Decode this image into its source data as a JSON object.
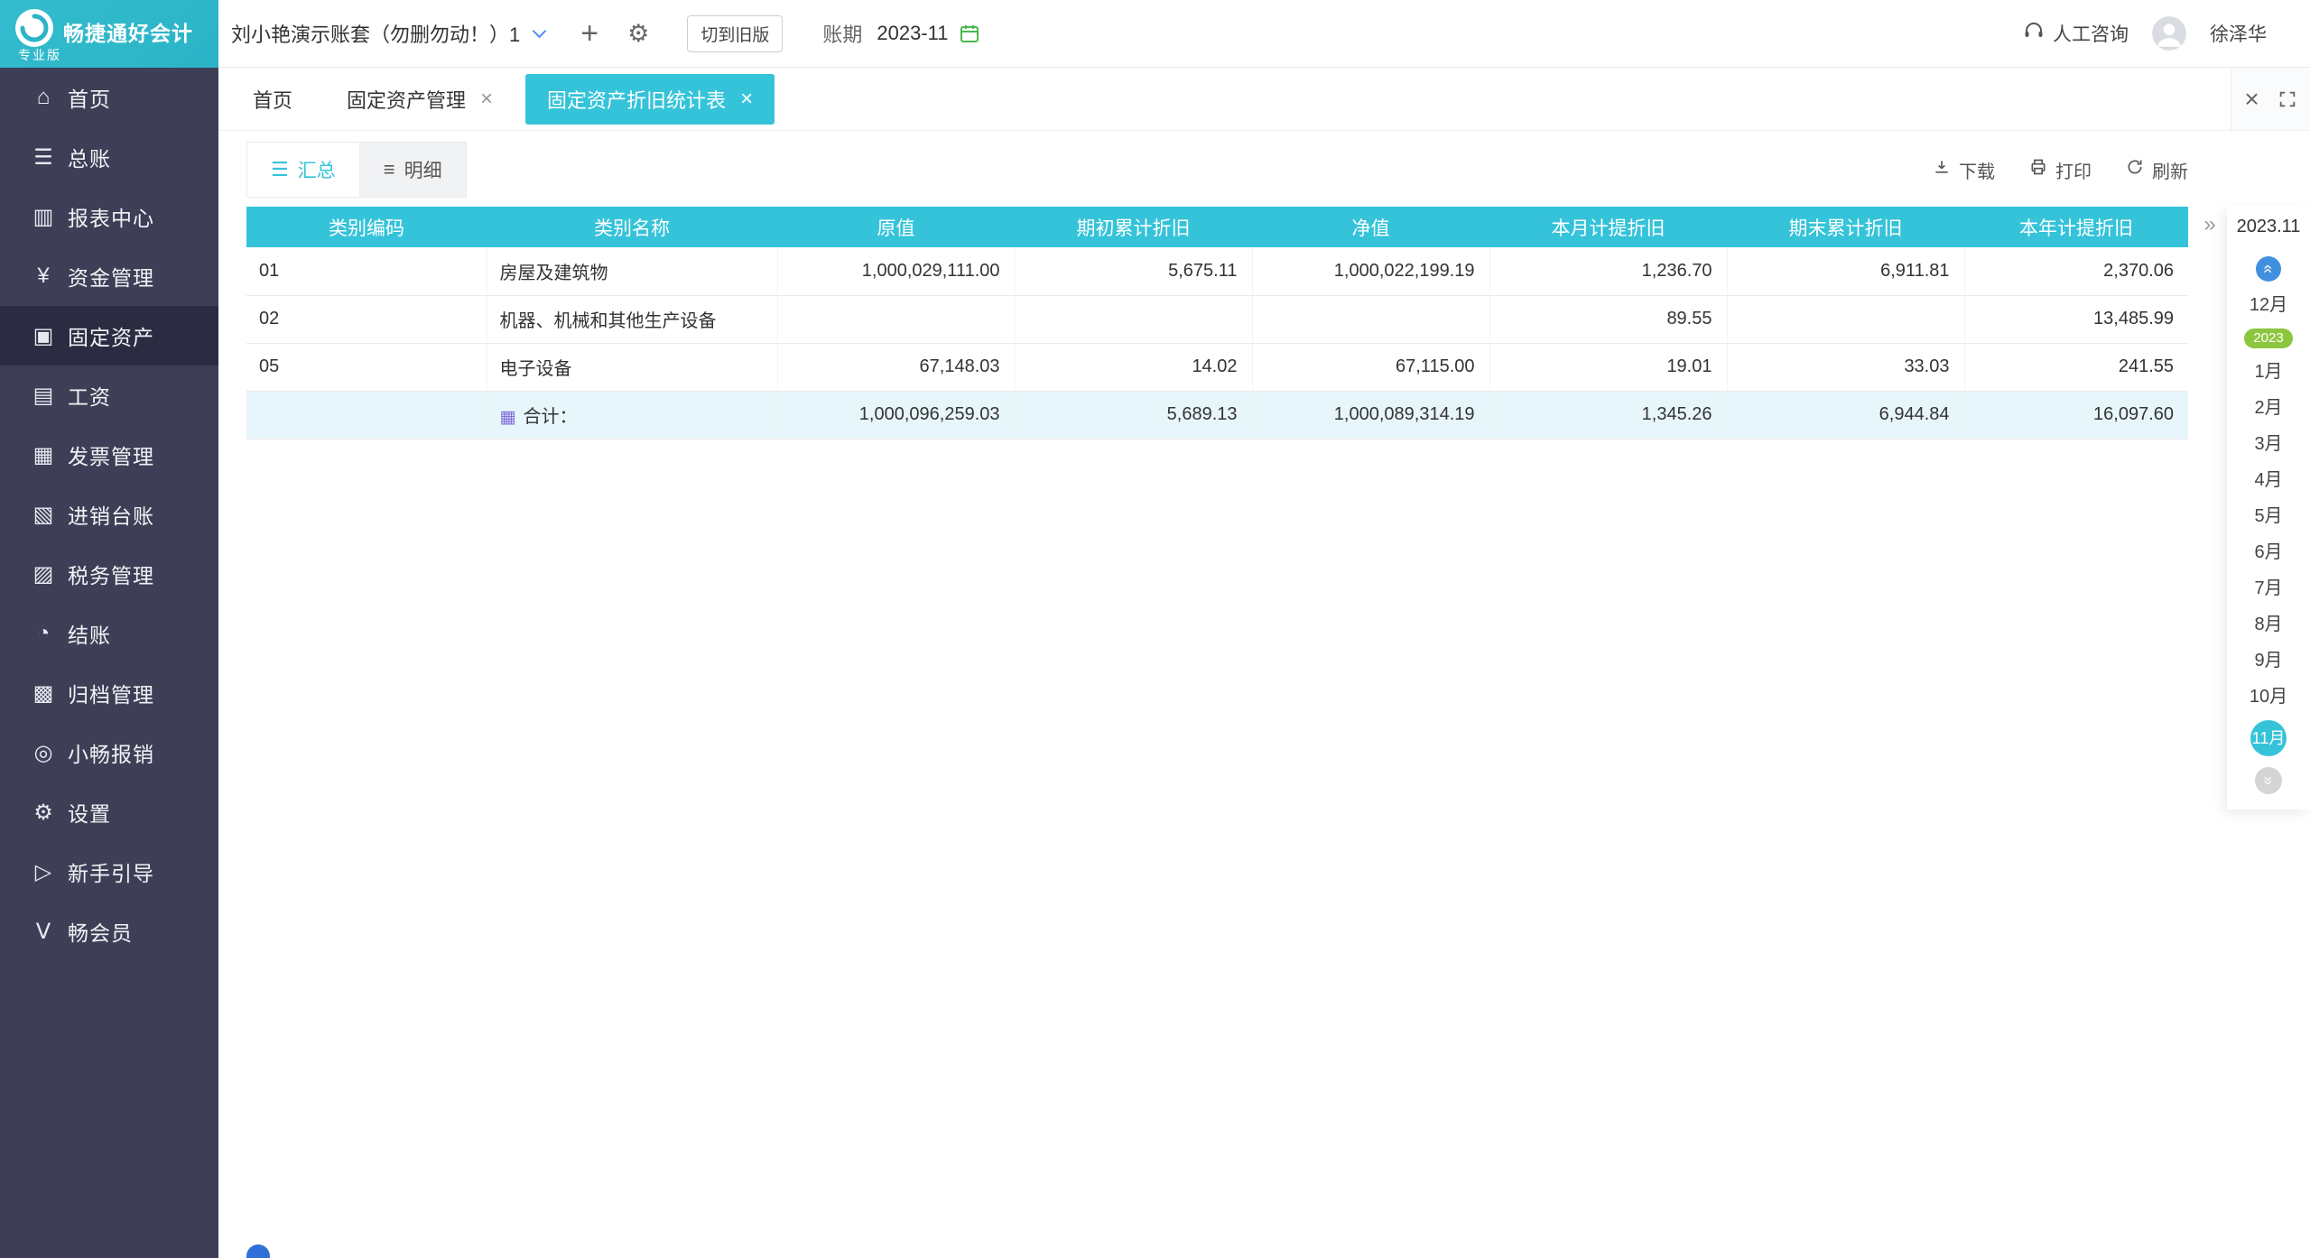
{
  "brand": {
    "title": "畅捷通好会计",
    "subtitle": "专业版"
  },
  "topbar": {
    "account_set": "刘小艳演示账套（勿删勿动！）1",
    "add_glyph": "+",
    "gear_glyph": "⚙",
    "switch_old_label": "切到旧版",
    "period_label": "账期",
    "period_value": "2023-11",
    "support_label": "人工咨询",
    "username": "徐泽华"
  },
  "sidebar": {
    "items": [
      {
        "key": "home",
        "label": "首页",
        "icon": "home-icon",
        "glyph": "⌂",
        "active": false
      },
      {
        "key": "general-ledger",
        "label": "总账",
        "icon": "ledger-icon",
        "glyph": "☰",
        "active": false
      },
      {
        "key": "report-center",
        "label": "报表中心",
        "icon": "report-center-icon",
        "glyph": "▥",
        "active": false
      },
      {
        "key": "funds",
        "label": "资金管理",
        "icon": "funds-icon",
        "glyph": "¥",
        "active": false
      },
      {
        "key": "fixed-assets",
        "label": "固定资产",
        "icon": "fixed-assets-icon",
        "glyph": "▣",
        "active": true
      },
      {
        "key": "salary",
        "label": "工资",
        "icon": "salary-icon",
        "glyph": "▤",
        "active": false
      },
      {
        "key": "invoice",
        "label": "发票管理",
        "icon": "invoice-icon",
        "glyph": "▦",
        "active": false
      },
      {
        "key": "inventory-ledger",
        "label": "进销台账",
        "icon": "inventory-icon",
        "glyph": "▧",
        "active": false
      },
      {
        "key": "tax",
        "label": "税务管理",
        "icon": "tax-icon",
        "glyph": "▨",
        "active": false
      },
      {
        "key": "closing",
        "label": "结账",
        "icon": "closing-icon",
        "glyph": "◔",
        "active": false
      },
      {
        "key": "archive",
        "label": "归档管理",
        "icon": "archive-icon",
        "glyph": "▩",
        "active": false
      },
      {
        "key": "reimburse",
        "label": "小畅报销",
        "icon": "reimburse-icon",
        "glyph": "◎",
        "active": false
      },
      {
        "key": "settings",
        "label": "设置",
        "icon": "settings-icon",
        "glyph": "⚙",
        "active": false
      },
      {
        "key": "guide",
        "label": "新手引导",
        "icon": "guide-icon",
        "glyph": "▷",
        "active": false
      },
      {
        "key": "member",
        "label": "畅会员",
        "icon": "member-icon",
        "glyph": "Ⅴ",
        "active": false
      }
    ]
  },
  "tabs": [
    {
      "key": "home",
      "label": "首页",
      "closable": false,
      "active": false
    },
    {
      "key": "fixed-assets-mgmt",
      "label": "固定资产管理",
      "closable": true,
      "active": false
    },
    {
      "key": "fixed-assets-depreciation-report",
      "label": "固定资产折旧统计表",
      "closable": true,
      "active": true
    }
  ],
  "tabbar": {
    "close_glyph": "×"
  },
  "toolbar": {
    "views": [
      {
        "key": "summary",
        "label": "汇总",
        "glyph": "☰",
        "active": true
      },
      {
        "key": "detail",
        "label": "明细",
        "glyph": "≡",
        "active": false
      }
    ],
    "actions": [
      {
        "key": "download",
        "label": "下载"
      },
      {
        "key": "print",
        "label": "打印"
      },
      {
        "key": "refresh",
        "label": "刷新"
      }
    ]
  },
  "table": {
    "columns": [
      "类别编码",
      "类别名称",
      "原值",
      "期初累计折旧",
      "净值",
      "本月计提折旧",
      "期末累计折旧",
      "本年计提折旧"
    ],
    "rows": [
      [
        "01",
        "房屋及建筑物",
        "1,000,029,111.00",
        "5,675.11",
        "1,000,022,199.19",
        "1,236.70",
        "6,911.81",
        "2,370.06"
      ],
      [
        "02",
        "机器、机械和其他生产设备",
        "",
        "",
        "",
        "89.55",
        "",
        "13,485.99"
      ],
      [
        "05",
        "电子设备",
        "67,148.03",
        "14.02",
        "67,115.00",
        "19.01",
        "33.03",
        "241.55"
      ]
    ],
    "total": {
      "label": "合计：",
      "calc_glyph": "▦",
      "values": [
        "1,000,096,259.03",
        "5,689.13",
        "1,000,089,314.19",
        "1,345.26",
        "6,944.84",
        "16,097.60"
      ]
    }
  },
  "date_panel": {
    "header": "2023.11",
    "collapse_glyph": "»",
    "items": [
      {
        "type": "scroll-up",
        "glyph": "«"
      },
      {
        "type": "month",
        "key": "12",
        "label": "12月",
        "selected": false
      },
      {
        "type": "year",
        "label": "2023"
      },
      {
        "type": "month",
        "key": "1",
        "label": "1月",
        "selected": false
      },
      {
        "type": "month",
        "key": "2",
        "label": "2月",
        "selected": false
      },
      {
        "type": "month",
        "key": "3",
        "label": "3月",
        "selected": false
      },
      {
        "type": "month",
        "key": "4",
        "label": "4月",
        "selected": false
      },
      {
        "type": "month",
        "key": "5",
        "label": "5月",
        "selected": false
      },
      {
        "type": "month",
        "key": "6",
        "label": "6月",
        "selected": false
      },
      {
        "type": "month",
        "key": "7",
        "label": "7月",
        "selected": false
      },
      {
        "type": "month",
        "key": "8",
        "label": "8月",
        "selected": false
      },
      {
        "type": "month",
        "key": "9",
        "label": "9月",
        "selected": false
      },
      {
        "type": "month",
        "key": "10",
        "label": "10月",
        "selected": false
      },
      {
        "type": "month",
        "key": "11",
        "label": "11月",
        "selected": true
      },
      {
        "type": "scroll-down",
        "glyph": "»"
      }
    ]
  },
  "colors": {
    "accent": "#35c3d9",
    "sidebar_bg": "#3e3f56",
    "sidebar_active_bg": "#2b2c41",
    "logo_bg": "#2bb4c7",
    "year_badge_bg": "#8cc63f",
    "scroll_up_bg": "#4090de",
    "total_row_bg": "#e7f6fb"
  }
}
